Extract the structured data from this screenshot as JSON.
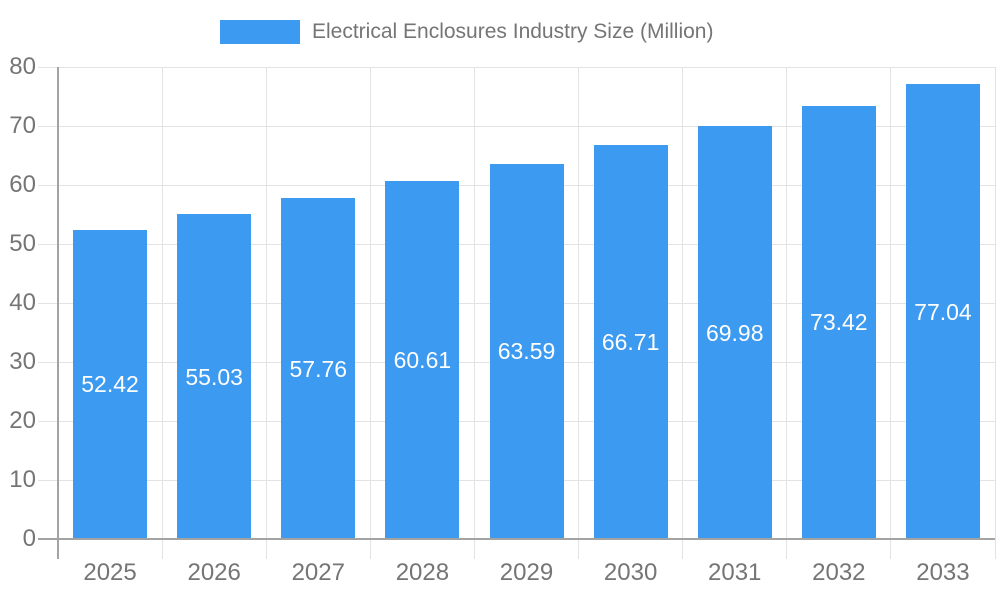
{
  "chart_data": {
    "type": "bar",
    "title": "Electrical Enclosures Industry Size (Million)",
    "categories": [
      "2025",
      "2026",
      "2027",
      "2028",
      "2029",
      "2030",
      "2031",
      "2032",
      "2033"
    ],
    "values": [
      52.42,
      55.03,
      57.76,
      60.61,
      63.59,
      66.71,
      69.98,
      73.42,
      77.04
    ],
    "series": [
      {
        "name": "Electrical Enclosures Industry Size (Million)",
        "values": [
          52.42,
          55.03,
          57.76,
          60.61,
          63.59,
          66.71,
          69.98,
          73.42,
          77.04
        ]
      }
    ],
    "xlabel": "",
    "ylabel": "",
    "ylim": [
      0,
      80
    ],
    "ytick_step": 10,
    "y_ticks": [
      0,
      10,
      20,
      30,
      40,
      50,
      60,
      70,
      80
    ],
    "grid": true,
    "legend_position": "top-center",
    "value_labels": "inside-center",
    "colors": {
      "bar": "#3C9AF0",
      "value_label": "#ffffff",
      "axis_label": "#757575",
      "title": "#757575",
      "gridline": "#e3e3e3",
      "axis_line": "#a3a3a3",
      "background": "#ffffff"
    }
  }
}
